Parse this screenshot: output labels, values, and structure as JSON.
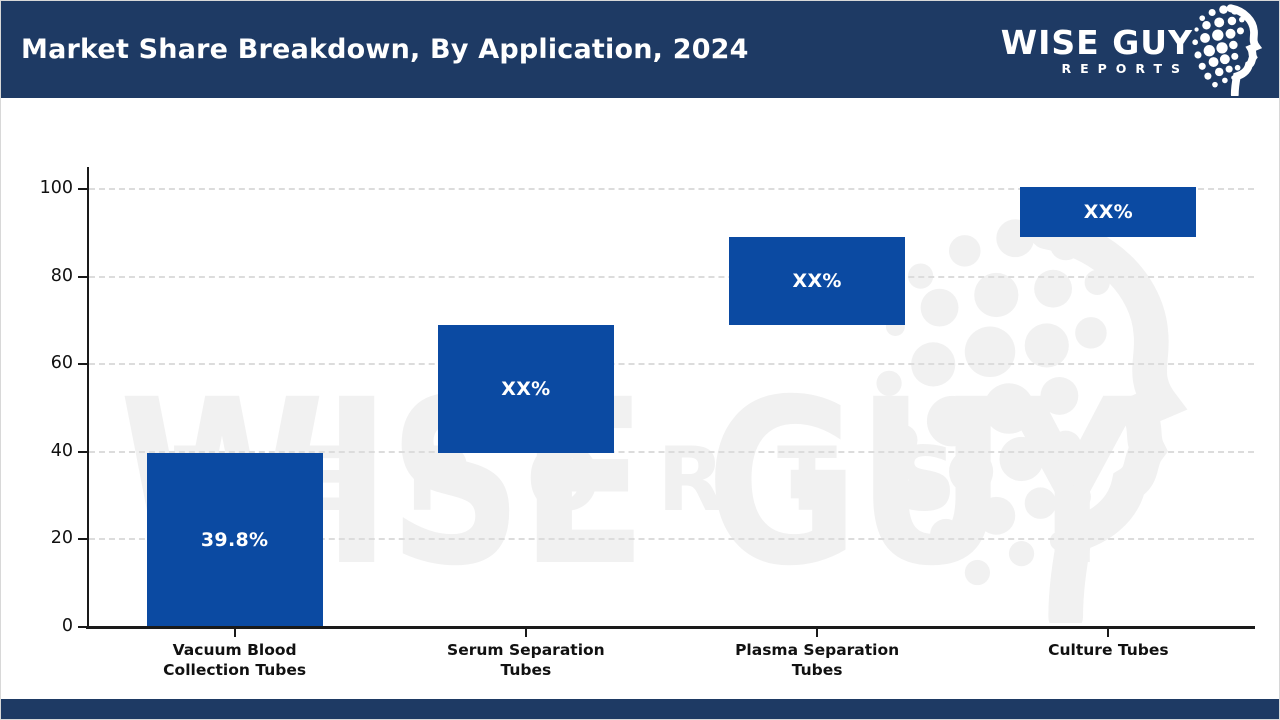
{
  "header": {
    "title": "Market Share Breakdown, By Application, 2024",
    "logo_name": "WISE GUY",
    "logo_sub": "REPORTS"
  },
  "watermark": {
    "line1": "WISE GUY",
    "line2": "REPORTS"
  },
  "colors": {
    "header_bg": "#1e3a64",
    "footer_bg": "#1e3a64",
    "bar": "#0b4aa2",
    "bar_label": "#ffffff",
    "grid": "#dcdcdc",
    "axis": "#1a1a1a",
    "watermark": "#f1f1f1"
  },
  "chart_data": {
    "type": "bar",
    "subtype": "waterfall-floating-bars",
    "title": "Market Share Breakdown, By Application, 2024",
    "categories": [
      "Vacuum Blood Collection Tubes",
      "Serum Separation Tubes",
      "Plasma Separation Tubes",
      "Culture Tubes"
    ],
    "category_lines": [
      [
        "Vacuum Blood",
        "Collection Tubes"
      ],
      [
        "Serum Separation",
        "Tubes"
      ],
      [
        "Plasma Separation",
        "Tubes"
      ],
      [
        "Culture Tubes"
      ]
    ],
    "segments": [
      {
        "category": "Vacuum Blood Collection Tubes",
        "start": 0,
        "end": 39.8,
        "label": "39.8%"
      },
      {
        "category": "Serum Separation Tubes",
        "start": 39.8,
        "end": 69,
        "label": "XX%"
      },
      {
        "category": "Plasma Separation Tubes",
        "start": 69,
        "end": 89,
        "label": "XX%"
      },
      {
        "category": "Culture Tubes",
        "start": 89,
        "end": 100.5,
        "label": "XX%"
      }
    ],
    "xlabel": "",
    "ylabel": "",
    "yticks": [
      0,
      20,
      40,
      60,
      80,
      100
    ],
    "ylim": [
      0,
      105
    ],
    "grid": "horizontal-dashed",
    "legend": "none"
  }
}
